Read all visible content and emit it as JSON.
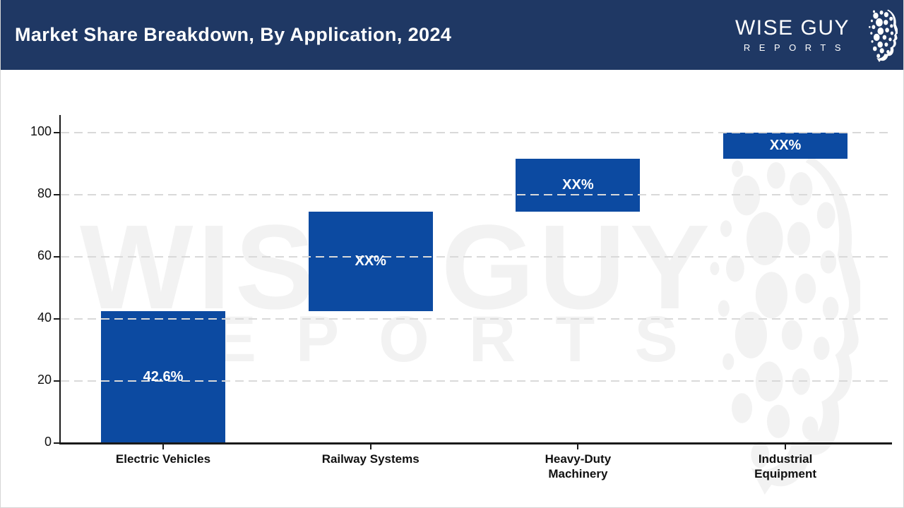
{
  "page": {
    "background": "#ffffff",
    "border_color": "#d6d6d6"
  },
  "header": {
    "title": "Market Share Breakdown, By Application, 2024",
    "background_color": "#1f3864",
    "text_color": "#ffffff",
    "logo": {
      "line1": "WISE GUY",
      "line2": "REPORTS"
    }
  },
  "watermark": {
    "line1": "WISE GUY",
    "line2": "REPORTS"
  },
  "chart_data": {
    "type": "bar",
    "variant": "waterfall-segmented-bars",
    "title": "Market Share Breakdown, By Application, 2024",
    "categories": [
      "Electric Vehicles",
      "Railway Systems",
      "Heavy-Duty Machinery",
      "Industrial Equipment"
    ],
    "category_display": [
      "Electric Vehicles",
      "Railway Systems",
      "Heavy-Duty\nMachinery",
      "Industrial\nEquipment"
    ],
    "series": [
      {
        "name": "Market share (%)",
        "starts": [
          0,
          42.6,
          74.6,
          91.6
        ],
        "ends": [
          42.6,
          74.6,
          91.6,
          100
        ],
        "bar_labels": [
          "42.6%",
          "XX%",
          "XX%",
          "XX%"
        ]
      }
    ],
    "xlabel": "",
    "ylabel": "",
    "ylim": [
      0,
      100
    ],
    "yticks": [
      0,
      20,
      40,
      60,
      80,
      100
    ],
    "legend": "none",
    "grid": "horizontal dashed, drawn over bars",
    "bar_color": "#0c4aa1",
    "bar_label_color": "#ffffff",
    "grid_color": "#d9d9d9",
    "axis_color": "#1a1a1a",
    "tick_label_color": "#111111",
    "watermark_color": "#f2f2f2"
  }
}
